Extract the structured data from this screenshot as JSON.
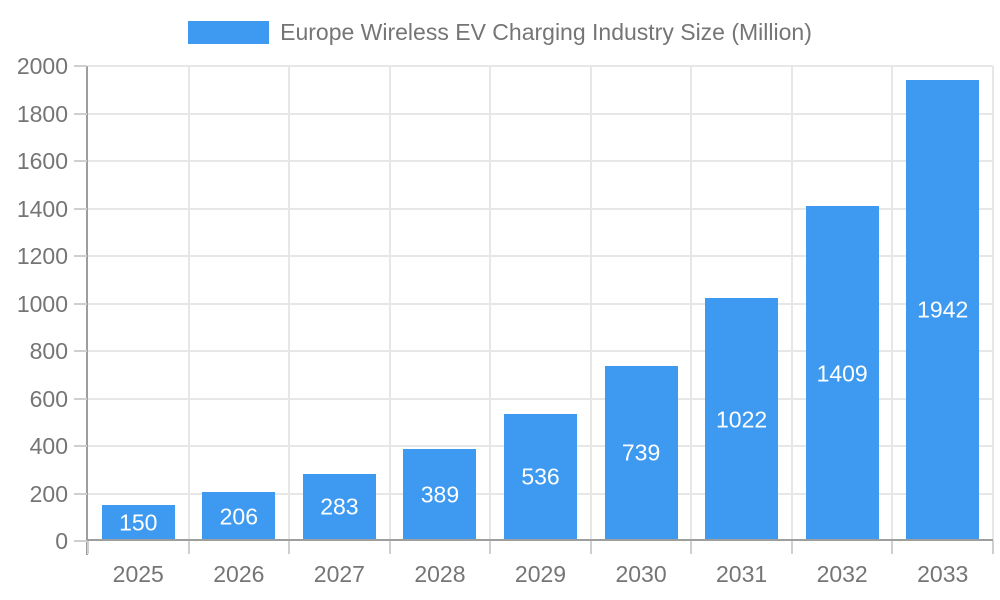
{
  "chart_data": {
    "type": "bar",
    "title": "Europe Wireless EV Charging Industry Size (Million)",
    "legend_position": "top",
    "categories": [
      "2025",
      "2026",
      "2027",
      "2028",
      "2029",
      "2030",
      "2031",
      "2032",
      "2033"
    ],
    "values": [
      150,
      206,
      283,
      389,
      536,
      739,
      1022,
      1409,
      1942
    ],
    "xlabel": "",
    "ylabel": "",
    "ylim": [
      0,
      2000
    ],
    "yticks": [
      0,
      200,
      400,
      600,
      800,
      1000,
      1200,
      1400,
      1600,
      1800,
      2000
    ],
    "grid": true,
    "bar_value_labels": "inside-centered"
  },
  "colors": {
    "bar": "#3d9af0",
    "bar_label": "#ffffff",
    "grid": "#e7e7e7",
    "axis": "#9e9e9e",
    "tick": "#cfcfcf",
    "text": "#757575"
  }
}
